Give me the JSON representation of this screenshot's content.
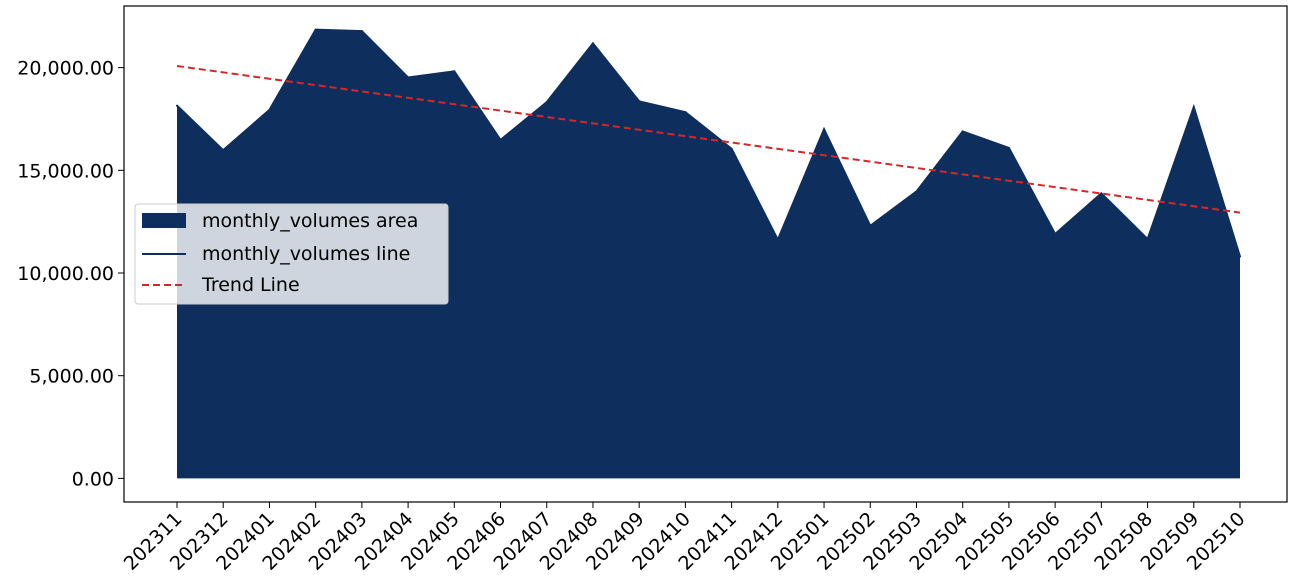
{
  "chart_data": {
    "type": "area",
    "categories": [
      "202311",
      "202312",
      "202401",
      "202402",
      "202403",
      "202404",
      "202405",
      "202406",
      "202407",
      "202408",
      "202409",
      "202410",
      "202411",
      "202412",
      "202501",
      "202502",
      "202503",
      "202504",
      "202505",
      "202506",
      "202507",
      "202508",
      "202509",
      "202510"
    ],
    "series": [
      {
        "name": "monthly_volumes area",
        "values": [
          18150,
          15980,
          17940,
          21850,
          21780,
          19520,
          19820,
          16480,
          18320,
          21180,
          18360,
          17830,
          16050,
          11620,
          17000,
          12300,
          13970,
          16890,
          16090,
          11900,
          13880,
          11650,
          18080,
          10800
        ],
        "color": "#0e2e5d"
      }
    ],
    "legend": [
      {
        "label": "monthly_volumes area",
        "kind": "area",
        "color": "#0e2e5d"
      },
      {
        "label": "monthly_volumes line",
        "kind": "line",
        "color": "#0e2e5d"
      },
      {
        "label": "Trend Line",
        "kind": "dashed",
        "color": "#d62728"
      }
    ],
    "trend_line": {
      "name": "Trend Line",
      "start": 20080,
      "end": 12940,
      "color": "#d62728"
    },
    "yticks": [
      "0.00",
      "5,000.00",
      "10,000.00",
      "15,000.00",
      "20,000.00"
    ],
    "ytick_values": [
      0,
      5000,
      10000,
      15000,
      20000
    ],
    "ylim": [
      -1150,
      23000
    ],
    "grid": false,
    "legend_position": "center-left"
  }
}
